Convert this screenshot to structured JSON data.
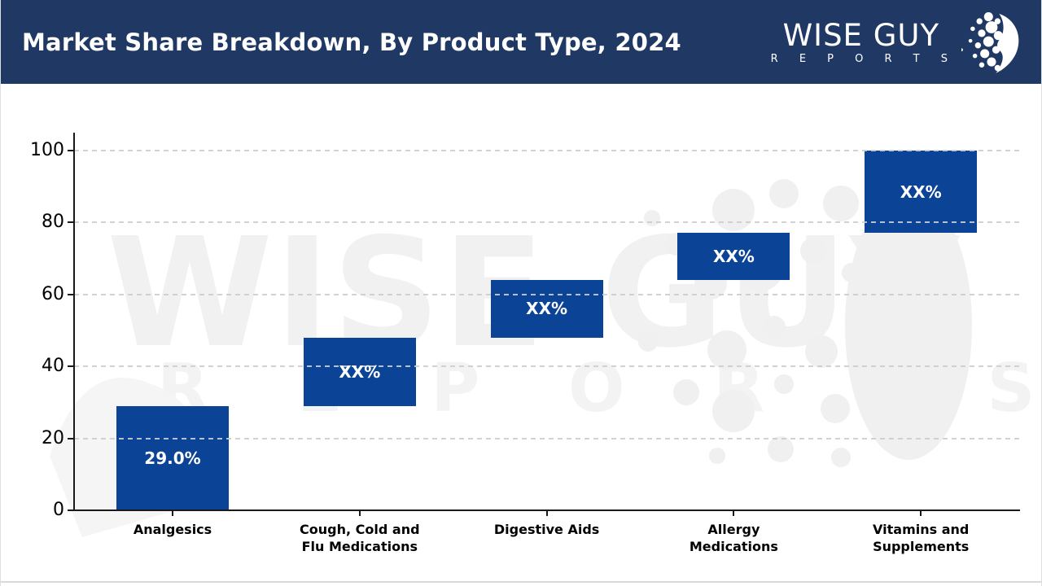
{
  "header": {
    "title": "Market Share Breakdown, By Product Type, 2024",
    "bg_color": "#1f3864",
    "logo": {
      "line1": "WISE GUY",
      "line2": "R E P O R T S"
    }
  },
  "watermark": {
    "line1": "WISE GUY",
    "line2": "R E P O R T S"
  },
  "chart_data": {
    "type": "bar",
    "subtype": "waterfall-floating-bars",
    "title": "Market Share Breakdown, By Product Type, 2024",
    "categories": [
      [
        "Analgesics"
      ],
      [
        "Cough, Cold and",
        "Flu Medications"
      ],
      [
        "Digestive Aids"
      ],
      [
        "Allergy",
        "Medications"
      ],
      [
        "Vitamins and",
        "Supplements"
      ]
    ],
    "segments": [
      {
        "start": 0,
        "end": 29,
        "value": 29,
        "label": "29.0%"
      },
      {
        "start": 29,
        "end": 48,
        "value": 19,
        "label": "XX%"
      },
      {
        "start": 48,
        "end": 64,
        "value": 16,
        "label": "XX%"
      },
      {
        "start": 64,
        "end": 77,
        "value": 13,
        "label": "XX%"
      },
      {
        "start": 77,
        "end": 100,
        "value": 23,
        "label": "XX%"
      }
    ],
    "yticks": [
      0,
      20,
      40,
      60,
      80,
      100
    ],
    "ylim": [
      0,
      105
    ],
    "xlabel": "",
    "ylabel": "",
    "bar_color": "#0b4396",
    "bar_label_color": "#ffffff",
    "axis_color": "#1a1a1a",
    "grid": "horizontal dashed light-gray, drawn over bars",
    "legend": "none"
  }
}
